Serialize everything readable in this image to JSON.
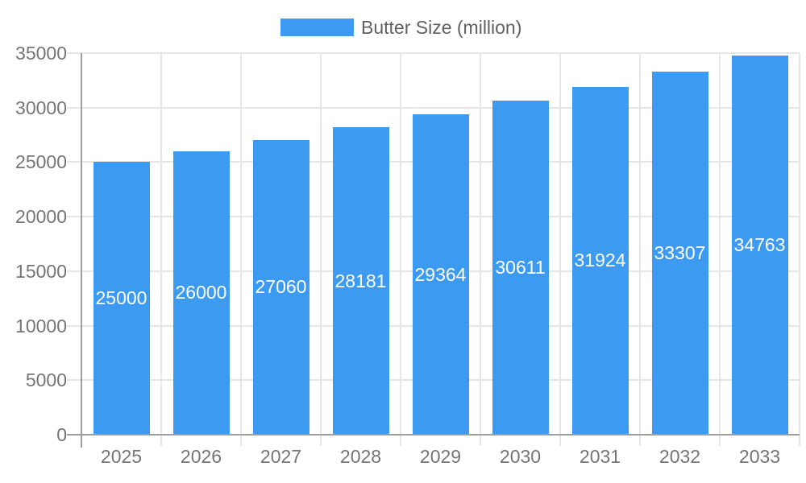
{
  "legend": {
    "label": "Butter Size (million)"
  },
  "chart_data": {
    "type": "bar",
    "title": "",
    "categories": [
      "2025",
      "2026",
      "2027",
      "2028",
      "2029",
      "2030",
      "2031",
      "2032",
      "2033"
    ],
    "series": [
      {
        "name": "Butter Size (million)",
        "values": [
          25000,
          26000,
          27060,
          28181,
          29364,
          30611,
          31924,
          33307,
          34763
        ]
      }
    ],
    "bar_value_labels": [
      "25000",
      "26000",
      "27060",
      "28181",
      "29364",
      "30611",
      "31924",
      "33307",
      "34763"
    ],
    "xlabel": "",
    "ylabel": "",
    "ylim": [
      0,
      35000
    ],
    "yticks": [
      0,
      5000,
      10000,
      15000,
      20000,
      25000,
      30000,
      35000
    ],
    "ytick_labels": [
      "0",
      "5000",
      "10000",
      "15000",
      "20000",
      "25000",
      "30000",
      "35000"
    ],
    "grid": true,
    "legend_position": "top",
    "value_labels_inside_bars": true
  },
  "colors": {
    "bar": "#3C9BF0",
    "grid": "#E6E6E6",
    "axis": "#9E9E9E",
    "axis_label_text": "#757575",
    "legend_text": "#616161",
    "bar_label_text": "#FFFFFF",
    "background": "#FFFFFF"
  }
}
